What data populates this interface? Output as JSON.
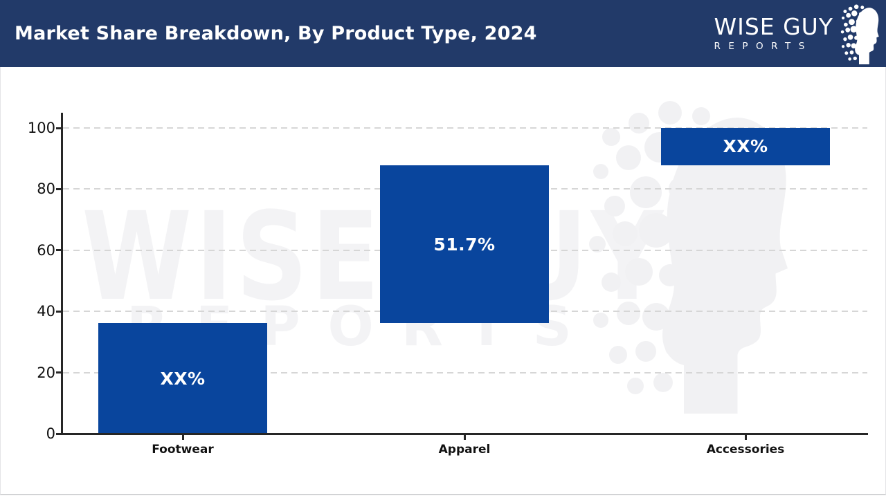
{
  "header": {
    "title": "Market Share Breakdown, By Product Type, 2024",
    "logo": {
      "primary": "WISE GUY",
      "secondary": "REPORTS"
    }
  },
  "watermark": {
    "primary": "WISE GUY",
    "secondary": "REPORTS"
  },
  "chart_data": {
    "type": "bar",
    "subtype": "waterfall",
    "title": "Market Share Breakdown, By Product Type, 2024",
    "categories": [
      "Footwear",
      "Apparel",
      "Accessories"
    ],
    "series": [
      {
        "name": "Market Share (%)",
        "segments": [
          {
            "category": "Footwear",
            "from": 0,
            "to": 36.1,
            "label": "XX%"
          },
          {
            "category": "Apparel",
            "from": 36.1,
            "to": 87.8,
            "label": "51.7%"
          },
          {
            "category": "Accessories",
            "from": 87.8,
            "to": 100,
            "label": "XX%"
          }
        ]
      }
    ],
    "ylim": [
      0,
      105
    ],
    "yticks": [
      0,
      20,
      40,
      60,
      80,
      100
    ],
    "grid": {
      "horizontal": true,
      "style": "dashed"
    },
    "legend": {
      "visible": false
    },
    "bar_color": "#09459D",
    "bar_label_color": "#FFFFFF"
  },
  "colors": {
    "header_bg": "#223A69",
    "bar": "#09459D",
    "gridline": "#D6D6D6",
    "axis": "#262626",
    "watermark": "#F3F3F5",
    "bottom_rule": "#D2D3D5"
  }
}
